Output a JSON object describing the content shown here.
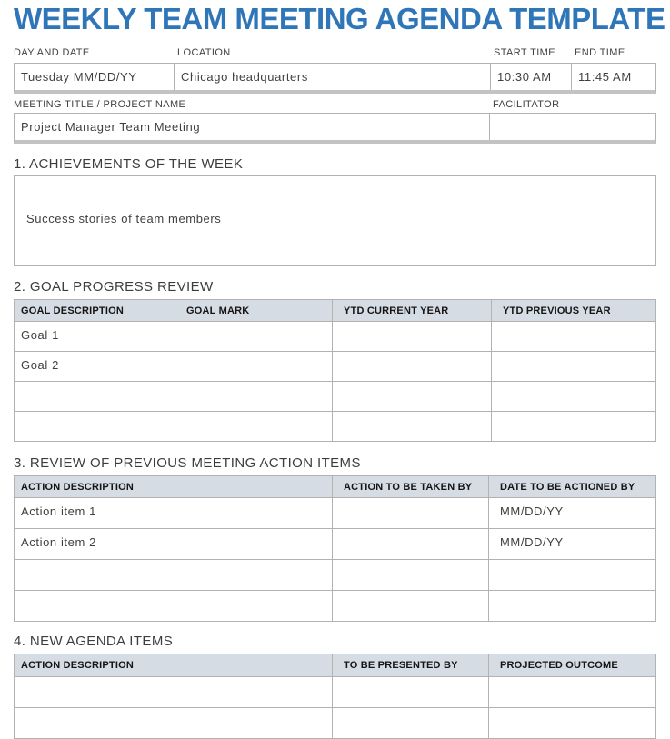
{
  "title": "WEEKLY TEAM MEETING AGENDA TEMPLATE",
  "info": {
    "row1": {
      "labels": [
        "DAY AND DATE",
        "LOCATION",
        "START TIME",
        "END TIME"
      ],
      "values": [
        "Tuesday MM/DD/YY",
        "Chicago headquarters",
        "10:30 AM",
        "11:45 AM"
      ]
    },
    "row2": {
      "labels": [
        "MEETING TITLE / PROJECT NAME",
        "FACILITATOR"
      ],
      "values": [
        "Project Manager Team Meeting",
        ""
      ]
    }
  },
  "sections": {
    "achievements": {
      "heading": "1. ACHIEVEMENTS OF THE WEEK",
      "content": "Success stories of team members"
    },
    "goals": {
      "heading": "2. GOAL PROGRESS REVIEW",
      "columns": [
        "GOAL DESCRIPTION",
        "GOAL MARK",
        "YTD CURRENT YEAR",
        "YTD PREVIOUS YEAR"
      ],
      "rows": [
        [
          "Goal 1",
          "",
          "",
          ""
        ],
        [
          "Goal 2",
          "",
          "",
          ""
        ],
        [
          "",
          "",
          "",
          ""
        ],
        [
          "",
          "",
          "",
          ""
        ]
      ]
    },
    "previous_actions": {
      "heading": "3. REVIEW OF PREVIOUS MEETING ACTION ITEMS",
      "columns": [
        "ACTION DESCRIPTION",
        "ACTION TO BE TAKEN BY",
        "DATE TO BE ACTIONED BY"
      ],
      "rows": [
        [
          "Action item 1",
          "",
          "MM/DD/YY"
        ],
        [
          "Action item 2",
          "",
          "MM/DD/YY"
        ],
        [
          "",
          "",
          ""
        ],
        [
          "",
          "",
          ""
        ]
      ]
    },
    "new_agenda": {
      "heading": "4. NEW AGENDA ITEMS",
      "columns": [
        "ACTION DESCRIPTION",
        "TO BE PRESENTED BY",
        "PROJECTED OUTCOME"
      ],
      "rows": [
        [
          "",
          "",
          ""
        ],
        [
          "",
          "",
          ""
        ]
      ]
    }
  },
  "colors": {
    "title_blue": "#2F76B8",
    "table_header_bg": "#D6DCE4",
    "border_gray": "#B2B2B2",
    "thick_border_gray": "#C3C3C3",
    "text_gray": "#3F3F3F"
  }
}
